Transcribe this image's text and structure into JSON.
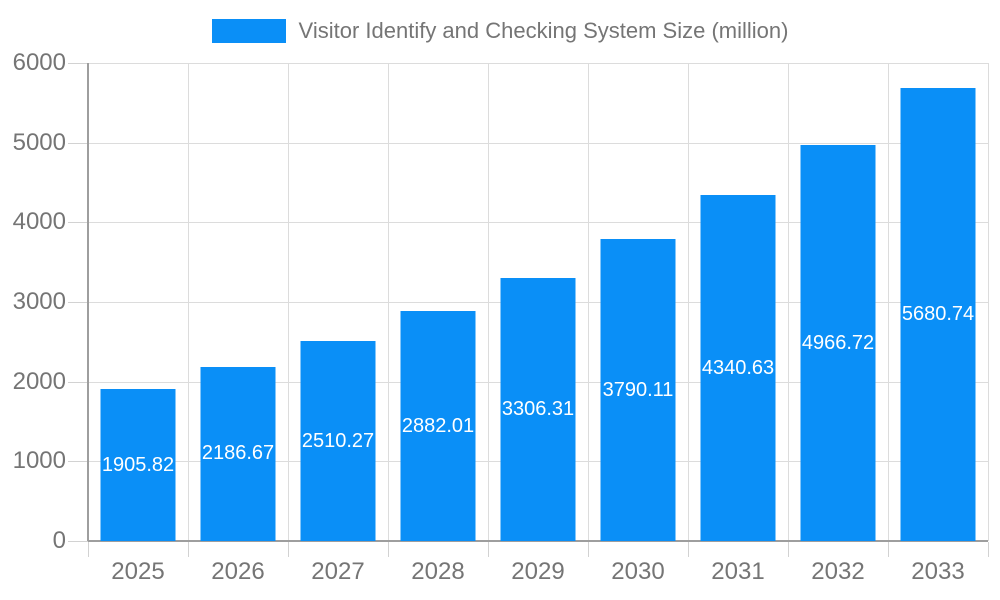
{
  "legend": {
    "label": "Visitor Identify and Checking System Size (million)",
    "position": "top"
  },
  "chart_data": {
    "type": "bar",
    "title": "Visitor Identify and Checking System Size (million)",
    "categories": [
      "2025",
      "2026",
      "2027",
      "2028",
      "2029",
      "2030",
      "2031",
      "2032",
      "2033"
    ],
    "values": [
      1905.82,
      2186.67,
      2510.27,
      2882.01,
      3306.31,
      3790.11,
      4340.63,
      4966.72,
      5680.74
    ],
    "value_label_decimals": 2,
    "xlabel": "",
    "ylabel": "",
    "ylim": [
      0,
      6000
    ],
    "y_ticks": [
      0,
      1000,
      2000,
      3000,
      4000,
      5000,
      6000
    ],
    "grid": true,
    "legend_position": "top"
  },
  "colors": {
    "bar": "#0a8ff7",
    "axis_text": "#757575",
    "bar_label_text": "#ffffff",
    "grid_line": "#dcdcdc",
    "axis_line": "#9e9e9e",
    "tick_line": "#d2d2d2",
    "background": "#ffffff"
  }
}
